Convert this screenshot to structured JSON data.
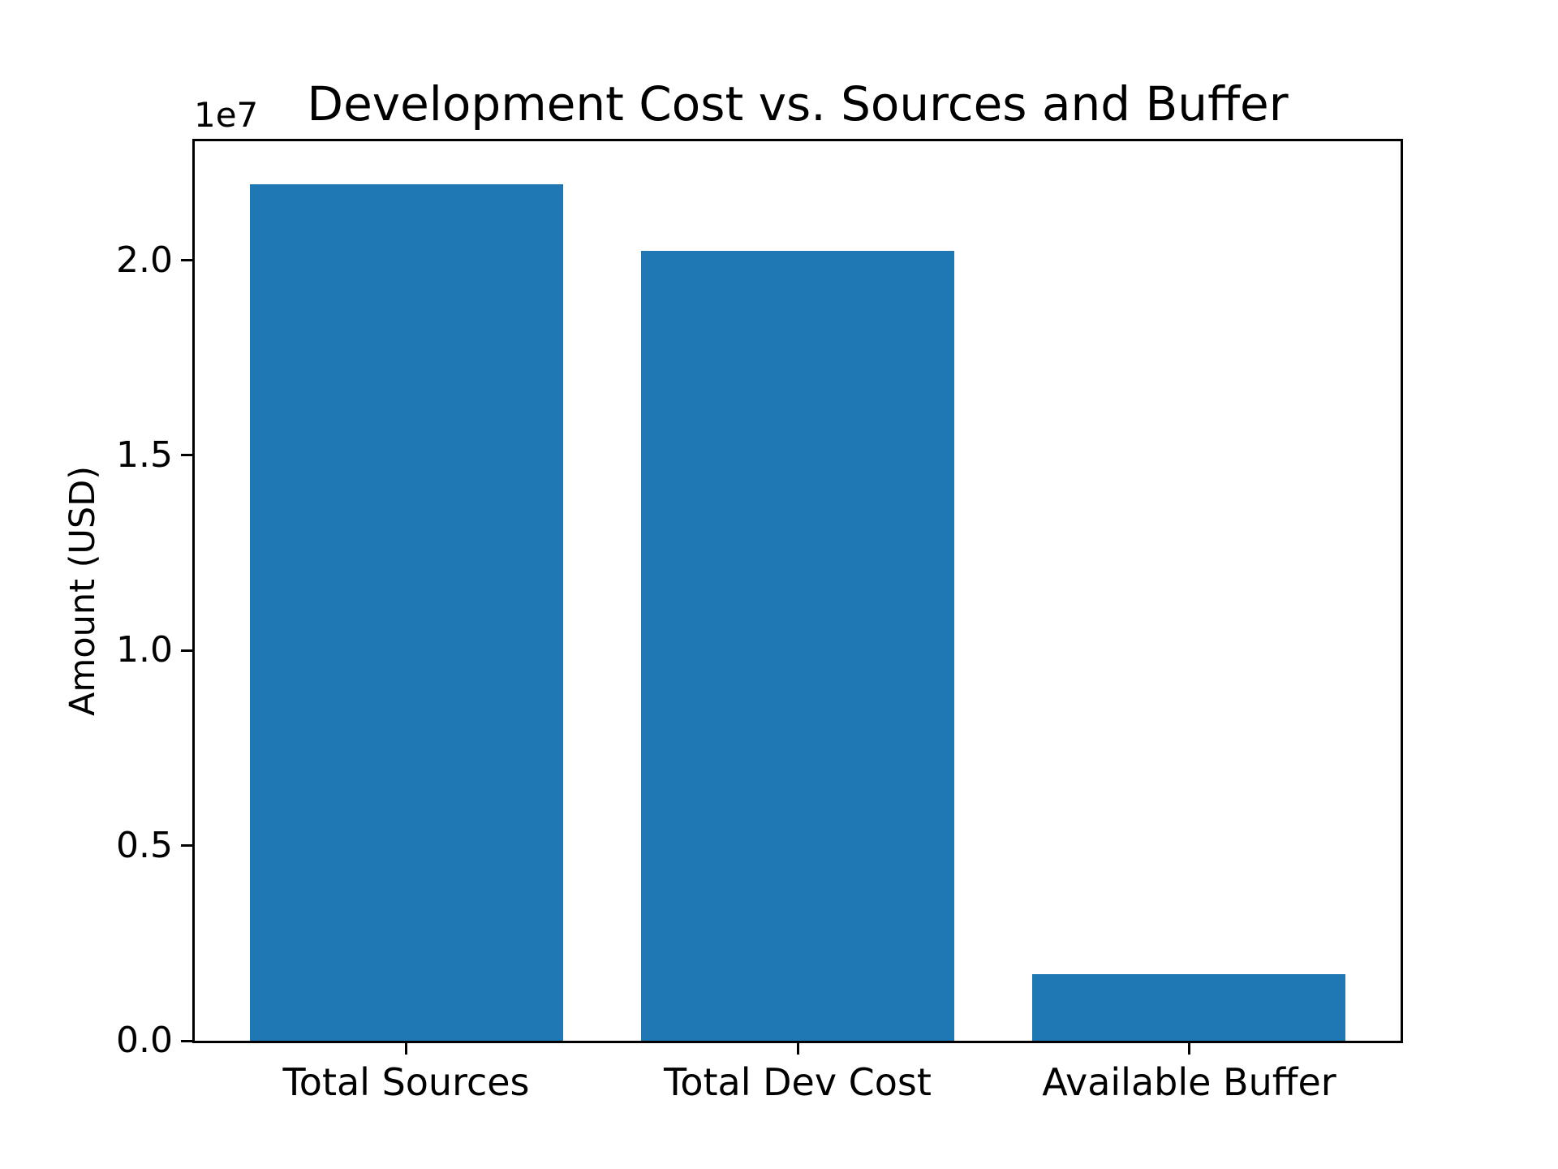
{
  "chart_data": {
    "type": "bar",
    "title": "Development Cost vs. Sources and Buffer",
    "xlabel": "",
    "ylabel": "Amount (USD)",
    "y_offset_text": "1e7",
    "categories": [
      "Total Sources",
      "Total Dev Cost",
      "Available Buffer"
    ],
    "values": [
      21950000,
      20250000,
      1700000
    ],
    "series": [
      {
        "name": "Amount (USD)",
        "values": [
          21950000,
          20250000,
          1700000
        ]
      }
    ],
    "bar_color": "#1f77b4",
    "ylim": [
      0,
      23047500
    ],
    "xlim": [
      -0.54,
      2.54
    ],
    "bar_width_units": 0.8,
    "yticks": [
      {
        "value": 0,
        "label": "0.0"
      },
      {
        "value": 5000000,
        "label": "0.5"
      },
      {
        "value": 10000000,
        "label": "1.0"
      },
      {
        "value": 15000000,
        "label": "1.5"
      },
      {
        "value": 20000000,
        "label": "2.0"
      }
    ],
    "grid": false,
    "legend": "none",
    "spine_color": "#000000",
    "background_color": "#ffffff"
  }
}
